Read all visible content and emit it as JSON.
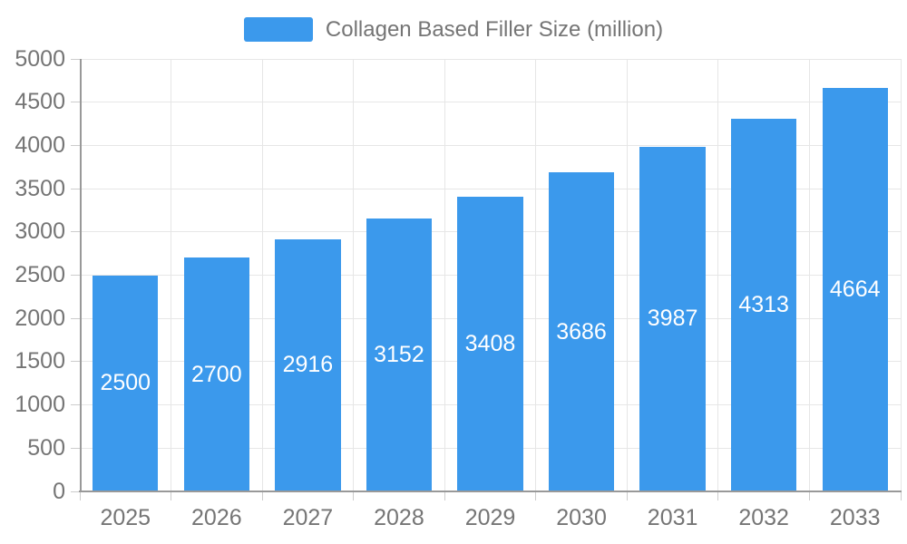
{
  "legend": {
    "label": "Collagen Based Filler Size (million)"
  },
  "chart_data": {
    "type": "bar",
    "title": "Collagen Based Filler Size (million)",
    "categories": [
      "2025",
      "2026",
      "2027",
      "2028",
      "2029",
      "2030",
      "2031",
      "2032",
      "2033"
    ],
    "series": [
      {
        "name": "Collagen Based Filler Size (million)",
        "values": [
          2500,
          2700,
          2916,
          3152,
          3408,
          3686,
          3987,
          4313,
          4664
        ]
      }
    ],
    "xlabel": "",
    "ylabel": "",
    "ylim": [
      0,
      5000
    ],
    "ytick_step": 500,
    "grid": true,
    "legend_position": "top",
    "data_labels": "inside-center",
    "colors": {
      "bar": "#3B99EC",
      "grid_line": "#E6E6E6",
      "axis_line": "#999999",
      "tick_line": "#CCCCCC",
      "tick_text": "#757575",
      "value_text": "#FFFFFF",
      "background": "#FFFFFF"
    }
  }
}
